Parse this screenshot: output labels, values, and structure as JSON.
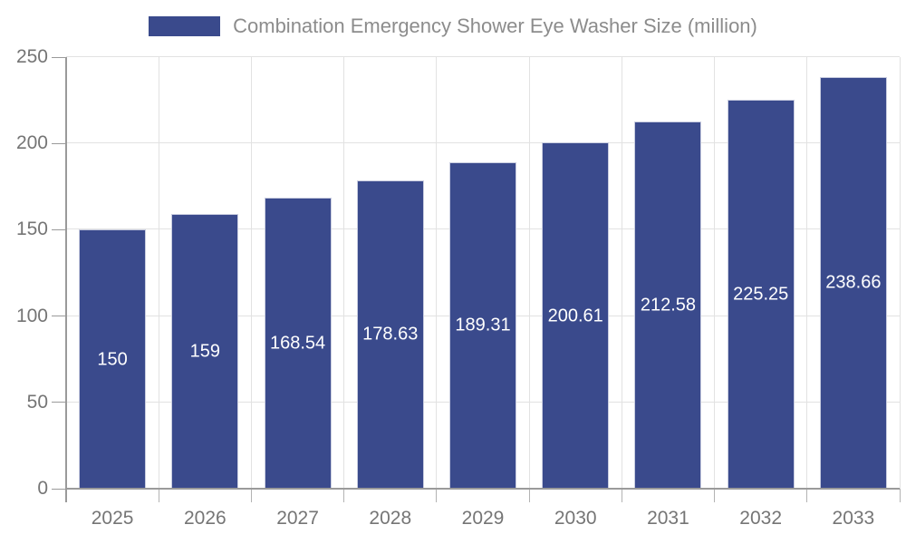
{
  "legend": {
    "label": "Combination Emergency Shower Eye Washer Size (million)"
  },
  "colors": {
    "bar": "#3A4A8C",
    "bar_border": "#C9CDE0",
    "axis": "#9A9A9A",
    "grid": "#E2E2E2",
    "tick": "#B3B3B3",
    "tick_label": "#757575",
    "legend_text": "#8C8C8C",
    "value_label": "#FFFFFF",
    "background": "#FFFFFF"
  },
  "chart_data": {
    "type": "bar",
    "title": "Combination Emergency Shower Eye Washer Size (million)",
    "categories": [
      "2025",
      "2026",
      "2027",
      "2028",
      "2029",
      "2030",
      "2031",
      "2032",
      "2033"
    ],
    "values": [
      150,
      159,
      168.54,
      178.63,
      189.31,
      200.61,
      212.58,
      225.25,
      238.66
    ],
    "value_labels": [
      "150",
      "159",
      "168.54",
      "178.63",
      "189.31",
      "200.61",
      "212.58",
      "225.25",
      "238.66"
    ],
    "xlabel": "",
    "ylabel": "",
    "ylim": [
      0,
      250
    ],
    "yticks": [
      0,
      50,
      100,
      150,
      200,
      250
    ],
    "grid": true,
    "legend_position": "top",
    "value_label_position": "center-of-bar"
  }
}
